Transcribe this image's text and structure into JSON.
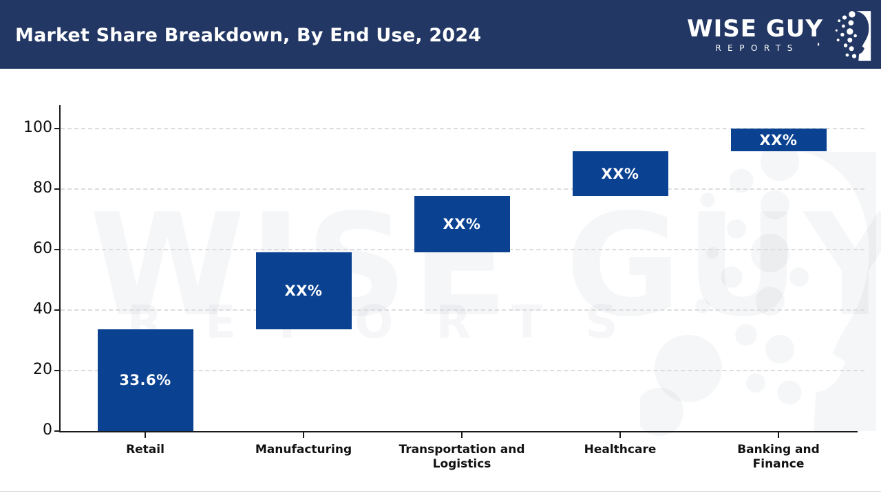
{
  "header": {
    "title": "Market Share Breakdown, By End Use, 2024",
    "bg_color": "#223763",
    "logo": {
      "text_top": "WISE GUY",
      "text_bottom": "REPORTS"
    }
  },
  "watermark": {
    "text_top": "WISE GUY",
    "text_bottom": "REPORTS"
  },
  "chart_data": {
    "type": "bar",
    "subtype": "waterfall-floating-bars",
    "title": "Market Share Breakdown, By End Use, 2024",
    "xlabel": "",
    "ylabel": "",
    "ylim": [
      0,
      107
    ],
    "yticks": [
      0,
      20,
      40,
      60,
      80,
      100
    ],
    "grid": "horizontal-dashed",
    "legend": "none",
    "bar_color": "#0b4191",
    "bar_label_color": "#ffffff",
    "categories": [
      "Retail",
      "Manufacturing",
      "Transportation and Logistics",
      "Healthcare",
      "Banking and Finance"
    ],
    "category_label_lines": [
      [
        "Retail"
      ],
      [
        "Manufacturing"
      ],
      [
        "Transportation and",
        "Logistics"
      ],
      [
        "Healthcare"
      ],
      [
        "Banking and",
        "Finance"
      ]
    ],
    "segments": [
      {
        "category": "Retail",
        "start": 0,
        "end": 33.6,
        "label": "33.6%"
      },
      {
        "category": "Manufacturing",
        "start": 33.6,
        "end": 59,
        "label": "XX%"
      },
      {
        "category": "Transportation and Logistics",
        "start": 59,
        "end": 77.8,
        "label": "XX%"
      },
      {
        "category": "Healthcare",
        "start": 77.8,
        "end": 92.4,
        "label": "XX%"
      },
      {
        "category": "Banking and Finance",
        "start": 92.4,
        "end": 100,
        "label": "XX%"
      }
    ]
  }
}
